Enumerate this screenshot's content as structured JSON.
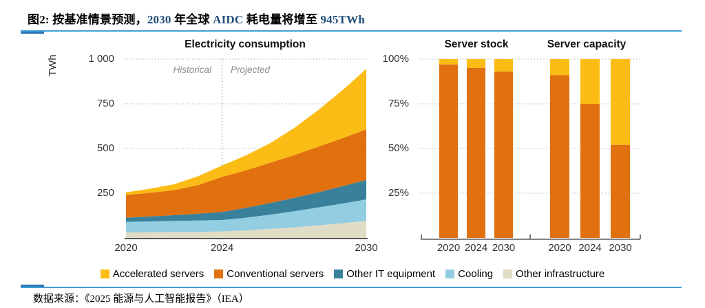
{
  "figure": {
    "title_segments": [
      {
        "text": "图2:  按基准情景预测，",
        "style": "cn"
      },
      {
        "text": "2030",
        "style": "latin"
      },
      {
        "text": " 年全球 ",
        "style": "cn"
      },
      {
        "text": "AIDC",
        "style": "latin"
      },
      {
        "text": " 耗电量将增至 ",
        "style": "cn"
      },
      {
        "text": "945TWh",
        "style": "latin"
      }
    ],
    "accent_rule_light": "#41A0D8",
    "accent_rule_dark": "#2E75B6"
  },
  "source": {
    "text": "数据来源：《2025 能源与人工智能报告》（IEA）"
  },
  "legend": {
    "items": [
      {
        "label": "Accelerated servers",
        "color": "#FBBC15"
      },
      {
        "label": "Conventional servers",
        "color": "#E1700F"
      },
      {
        "label": "Other IT equipment",
        "color": "#39819B"
      },
      {
        "label": "Cooling",
        "color": "#93CDE1"
      },
      {
        "label": "Other infrastructure",
        "color": "#E0DCC6"
      }
    ]
  },
  "chart_data": [
    {
      "type": "area",
      "title": "Electricity consumption",
      "ylabel": "TWh",
      "ylim": [
        0,
        1000
      ],
      "yticks": [
        "1 000",
        "750",
        "500",
        "250"
      ],
      "ytick_values": [
        1000,
        750,
        500,
        250
      ],
      "xticks": [
        "2020",
        "2024",
        "2030"
      ],
      "xtick_values": [
        2020,
        2024,
        2030
      ],
      "annotations": {
        "historical": "Historical",
        "projected": "Projected",
        "divider_x": 2024
      },
      "grid": "dotted",
      "x": [
        2020,
        2021,
        2022,
        2023,
        2024,
        2025,
        2026,
        2027,
        2028,
        2029,
        2030
      ],
      "series": [
        {
          "name": "Accelerated servers",
          "color": "#FBBC15",
          "values": [
            15,
            23,
            33,
            50,
            64,
            84,
            110,
            152,
            205,
            268,
            338
          ]
        },
        {
          "name": "Conventional servers",
          "color": "#E1700F",
          "values": [
            127,
            132,
            140,
            160,
            196,
            210,
            225,
            239,
            255,
            268,
            283
          ]
        },
        {
          "name": "Other IT equipment",
          "color": "#39819B",
          "values": [
            23,
            28,
            32,
            38,
            45,
            55,
            65,
            75,
            85,
            97,
            109
          ]
        },
        {
          "name": "Cooling",
          "color": "#93CDE1",
          "values": [
            60,
            61,
            62,
            63,
            64,
            71,
            80,
            90,
            100,
            110,
            120
          ]
        },
        {
          "name": "Other infrastructure",
          "color": "#E0DCC6",
          "values": [
            30,
            31,
            33,
            34,
            36,
            42,
            50,
            59,
            70,
            82,
            95
          ]
        }
      ],
      "totals_note": {
        "2020": 255,
        "2024": 405,
        "2030": 945
      }
    },
    {
      "type": "stacked-bar-percent",
      "title": "Server stock",
      "categories": [
        "2020",
        "2024",
        "2030"
      ],
      "yticks": [
        "100%",
        "75%",
        "50%",
        "25%"
      ],
      "ytick_values": [
        100,
        75,
        50,
        25
      ],
      "series": [
        {
          "name": "Conventional servers",
          "color": "#E1700F",
          "values": [
            97,
            95,
            93
          ]
        },
        {
          "name": "Accelerated servers",
          "color": "#FBBC15",
          "values": [
            3,
            5,
            7
          ]
        }
      ]
    },
    {
      "type": "stacked-bar-percent",
      "title": "Server capacity",
      "categories": [
        "2020",
        "2024",
        "2030"
      ],
      "series": [
        {
          "name": "Conventional servers",
          "color": "#E1700F",
          "values": [
            91,
            75,
            52
          ]
        },
        {
          "name": "Accelerated servers",
          "color": "#FBBC15",
          "values": [
            9,
            25,
            48
          ]
        }
      ]
    }
  ]
}
